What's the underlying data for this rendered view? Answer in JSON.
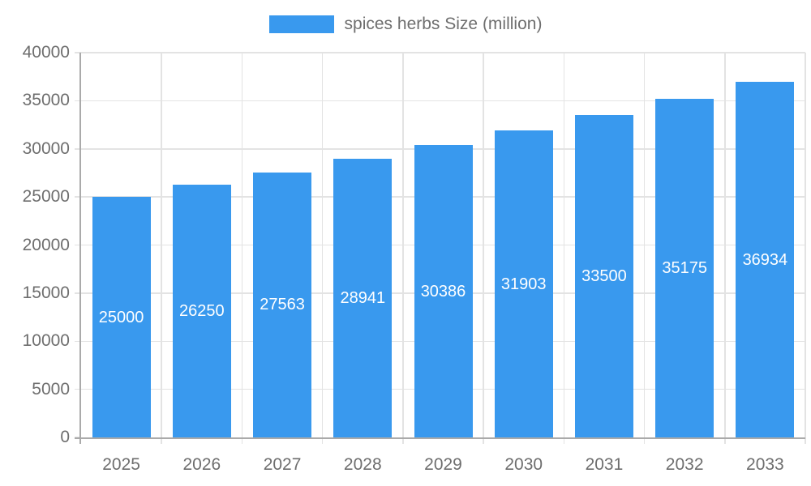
{
  "legend": {
    "label": "spices herbs Size (million)"
  },
  "colors": {
    "bar": "#3999ee",
    "grid": "#e3e3e3",
    "axis": "#aaaaaa",
    "tick_text": "#6e6e6e",
    "value_text": "#ffffff",
    "background": "#ffffff"
  },
  "chart_data": {
    "type": "bar",
    "categories": [
      "2025",
      "2026",
      "2027",
      "2028",
      "2029",
      "2030",
      "2031",
      "2032",
      "2033"
    ],
    "values": [
      25000,
      26250,
      27563,
      28941,
      30386,
      31903,
      33500,
      35175,
      36934
    ],
    "series_label": "spices herbs Size (million)",
    "title": "",
    "xlabel": "",
    "ylabel": "",
    "ylim": [
      0,
      40000
    ],
    "ytick_step": 5000,
    "ytick_labels": [
      "0",
      "5000",
      "10000",
      "15000",
      "20000",
      "25000",
      "30000",
      "35000",
      "40000"
    ],
    "grid": true,
    "legend_position": "top",
    "value_label_position": "inside-center"
  }
}
